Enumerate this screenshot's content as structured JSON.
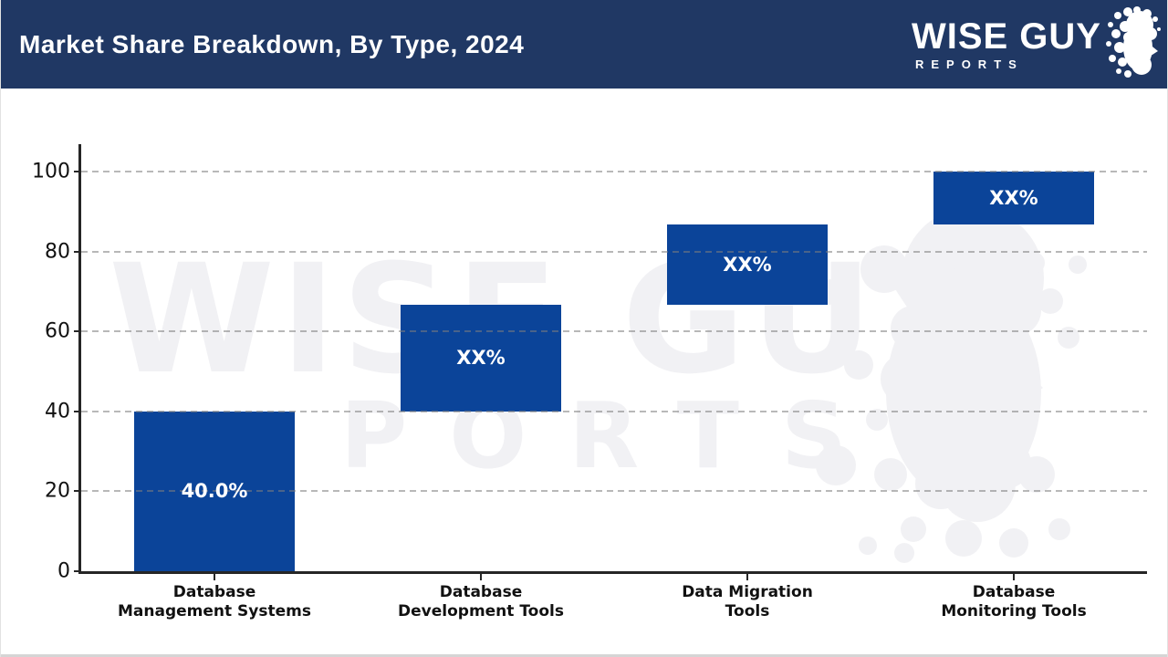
{
  "header": {
    "title": "Market Share Breakdown, By Type, 2024",
    "logo": {
      "line1": "WISE GUY",
      "line2": "REPORTS"
    }
  },
  "watermark": {
    "line1": "WISE GUY",
    "line2": "PORTS"
  },
  "colors": {
    "header_bg": "#203864",
    "bar": "#0b4499",
    "axis": "#262626",
    "grid": "#7d7d7d",
    "watermark": "#f1f1f4",
    "bar_label": "#ffffff",
    "tick_label": "#111111",
    "bottom_line": "#d5d5d5"
  },
  "chart_data": {
    "type": "bar",
    "subtype": "waterfall",
    "title": "Market Share Breakdown, By Type, 2024",
    "xlabel": "",
    "ylabel": "",
    "ylim": [
      0,
      100
    ],
    "yticks": [
      0,
      20,
      40,
      60,
      80,
      100
    ],
    "grid": "horizontal-dashed",
    "legend": "none",
    "bar_color": "#0b4499",
    "categories": [
      "Database Management Systems",
      "Database Development Tools",
      "Data Migration Tools",
      "Database Monitoring Tools"
    ],
    "category_lines": [
      [
        "Database",
        "Management Systems"
      ],
      [
        "Database",
        "Development Tools"
      ],
      [
        "Data Migration",
        "Tools"
      ],
      [
        "Database",
        "Monitoring Tools"
      ]
    ],
    "segments": [
      {
        "category": "Database Management Systems",
        "start": 0,
        "end": 40,
        "label": "40.0%"
      },
      {
        "category": "Database Development Tools",
        "start": 40,
        "end": 66.7,
        "label": "XX%"
      },
      {
        "category": "Data Migration Tools",
        "start": 66.7,
        "end": 86.7,
        "label": "XX%"
      },
      {
        "category": "Database Monitoring Tools",
        "start": 86.7,
        "end": 100,
        "label": "XX%"
      }
    ]
  }
}
